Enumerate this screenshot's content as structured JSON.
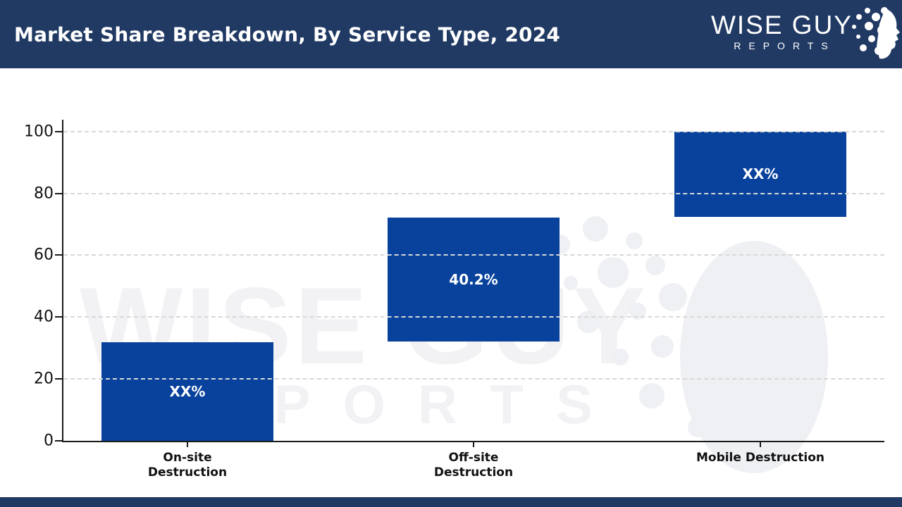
{
  "header": {
    "title": "Market Share Breakdown, By Service Type, 2024",
    "bg_color": "#213a64",
    "logo": {
      "line1": "WISE GUY",
      "line2": "REPORTS"
    }
  },
  "watermark": {
    "line1": "WISE GUY",
    "line2": "REPORTS"
  },
  "footer": {
    "bg_color": "#213a64"
  },
  "chart_data": {
    "type": "bar",
    "variant": "waterfall-style floating segments",
    "title": "Market Share Breakdown, By Service Type, 2024",
    "categories": [
      [
        "On-site",
        "Destruction"
      ],
      [
        "Off-site",
        "Destruction"
      ],
      [
        "Mobile Destruction"
      ]
    ],
    "segments": [
      {
        "category": "On-site Destruction",
        "start": 0,
        "end": 31.8,
        "label": "XX%"
      },
      {
        "category": "Off-site Destruction",
        "start": 32.0,
        "end": 72.2,
        "label": "40.2%"
      },
      {
        "category": "Mobile Destruction",
        "start": 72.4,
        "end": 100,
        "label": "XX%"
      }
    ],
    "yticks": [
      0,
      20,
      40,
      60,
      80,
      100
    ],
    "ylim": [
      0,
      100
    ],
    "xlabel": "",
    "ylabel": "",
    "grid": "horizontal dashed, drawn over bars",
    "legend": "none",
    "bar_color": "#08429c",
    "bar_label_color": "#ffffff",
    "grid_color": "#d8d8d8",
    "axis_color": "#1a1a1a"
  }
}
